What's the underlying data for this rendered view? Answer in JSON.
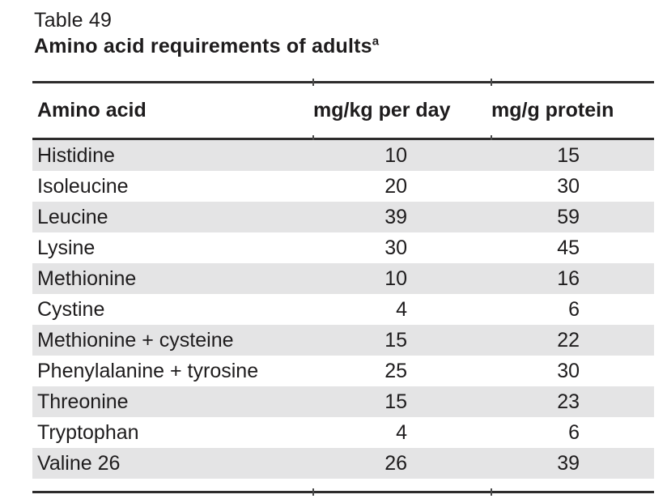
{
  "page": {
    "table_label": "Table 49",
    "title": "Amino acid requirements of adults",
    "title_superscript": "a"
  },
  "table": {
    "columns": [
      "Amino acid",
      "mg/kg per day",
      "mg/g protein"
    ],
    "rows": [
      [
        "Histidine",
        "10",
        "15"
      ],
      [
        "Isoleucine",
        "20",
        "30"
      ],
      [
        "Leucine",
        "39",
        "59"
      ],
      [
        "Lysine",
        "30",
        "45"
      ],
      [
        "Methionine",
        "10",
        "16"
      ],
      [
        "Cystine",
        "4",
        "6"
      ],
      [
        "Methionine + cysteine",
        "15",
        "22"
      ],
      [
        "Phenylalanine + tyrosine",
        "25",
        "30"
      ],
      [
        "Threonine",
        "15",
        "23"
      ],
      [
        "Tryptophan",
        "4",
        "6"
      ],
      [
        "Valine 26",
        "26",
        "39"
      ]
    ]
  },
  "colors": {
    "row_shade": "#e4e4e5",
    "rule": "#2d2c2c",
    "text": "#1e1c1d",
    "background": "#ffffff"
  }
}
